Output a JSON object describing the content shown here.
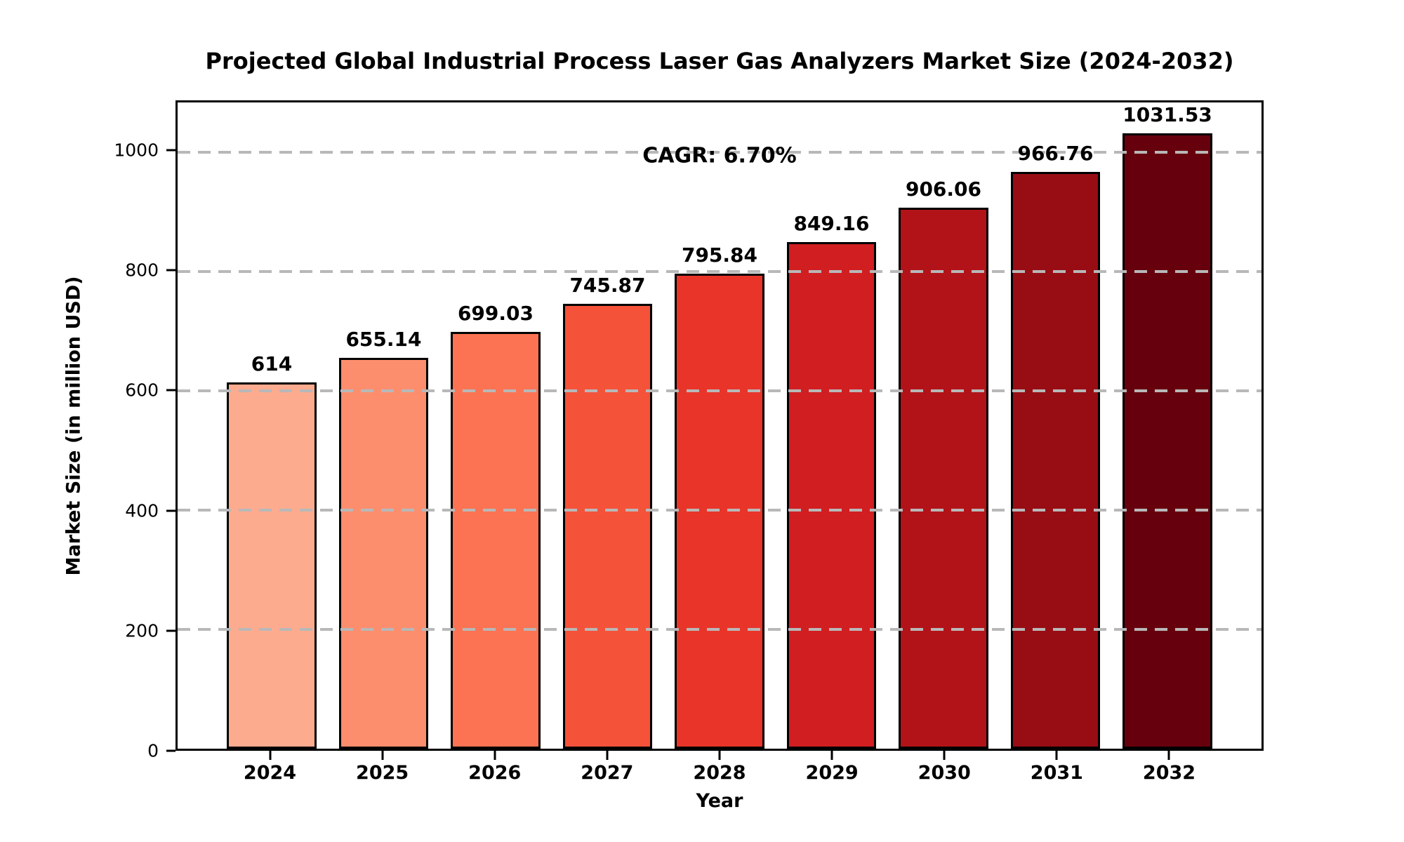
{
  "chart_data": {
    "type": "bar",
    "title": "Projected Global Industrial Process Laser Gas Analyzers Market Size (2024-2032)",
    "xlabel": "Year",
    "ylabel": "Market Size (in million USD)",
    "annotation": "CAGR: 6.70%",
    "categories": [
      "2024",
      "2025",
      "2026",
      "2027",
      "2028",
      "2029",
      "2030",
      "2031",
      "2032"
    ],
    "values": [
      614,
      655.14,
      699.03,
      745.87,
      795.84,
      849.16,
      906.06,
      966.76,
      1031.53
    ],
    "value_labels": [
      "614",
      "655.14",
      "699.03",
      "745.87",
      "795.84",
      "849.16",
      "906.06",
      "966.76",
      "1031.53"
    ],
    "bar_colors": [
      "#FCAB8F",
      "#FC8E6E",
      "#FB7353",
      "#F5523A",
      "#E93429",
      "#D11E21",
      "#B21318",
      "#980D14",
      "#67000D"
    ],
    "bar_edge_color": "#000000",
    "yticks": [
      0,
      200,
      400,
      600,
      800,
      1000
    ],
    "ylim": [
      0,
      1083
    ],
    "grid": {
      "axis": "y",
      "style": "dashed",
      "color": "#b8b8b8",
      "on": true
    },
    "legend": "none",
    "background_color": "#ffffff"
  }
}
